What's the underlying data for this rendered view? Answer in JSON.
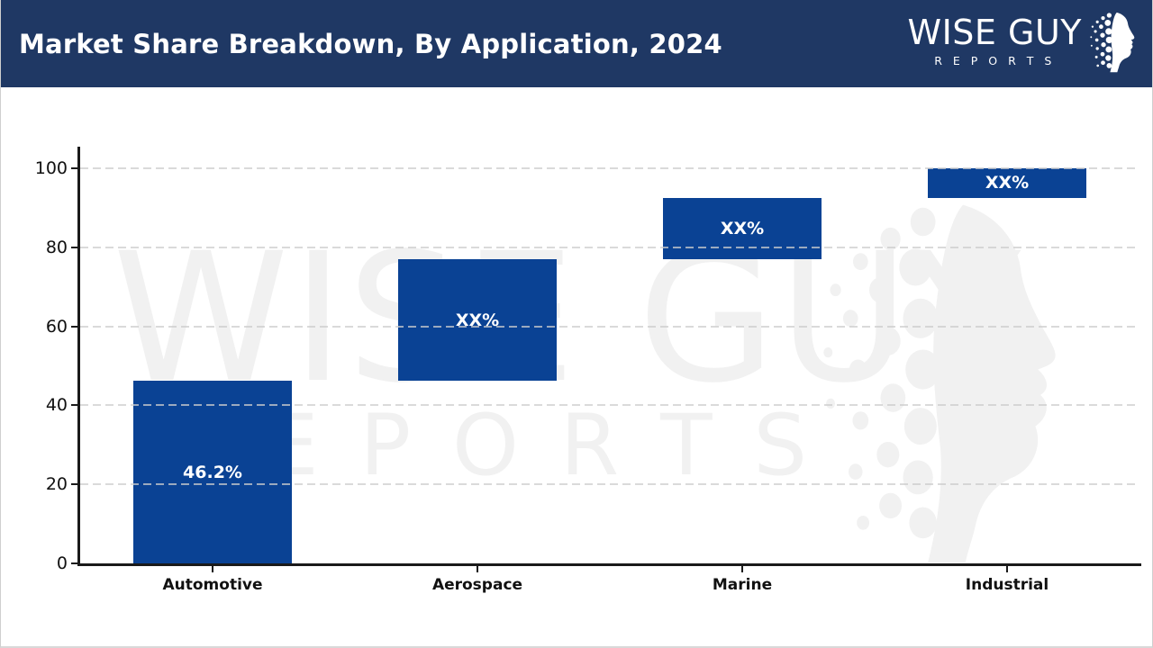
{
  "header": {
    "title": "Market Share Breakdown, By Application, 2024",
    "logo": {
      "wordmark": "WISE GUY",
      "subtext": "R E P O R T S"
    }
  },
  "watermark": {
    "line1": "WISE GUY",
    "line2": "R E P O R T S"
  },
  "colors": {
    "header_bg": "#1f3864",
    "bar": "#0a4294",
    "axis": "#1a1a1a",
    "gridline": "#dcdcdc",
    "watermark": "#f1f1f1",
    "bar_label": "#ffffff"
  },
  "chart_data": {
    "type": "bar",
    "subtype": "stacked-waterfall",
    "title": "Market Share Breakdown, By Application, 2024",
    "categories": [
      "Automotive",
      "Aerospace",
      "Marine",
      "Industrial"
    ],
    "values": [
      46.2,
      30.8,
      15.5,
      7.5
    ],
    "cumulative": [
      [
        0,
        46.2
      ],
      [
        46.2,
        77.0
      ],
      [
        77.0,
        92.5
      ],
      [
        92.5,
        100.0
      ]
    ],
    "bar_labels": [
      "46.2%",
      "XX%",
      "XX%",
      "XX%"
    ],
    "xlabel": "",
    "ylabel": "",
    "ylim": [
      0,
      100
    ],
    "yticks": [
      0,
      20,
      40,
      60,
      80,
      100
    ],
    "grid": {
      "axis": "y",
      "style": "dashed",
      "on": true
    },
    "legend": "none",
    "bar_color": "#0a4294"
  }
}
